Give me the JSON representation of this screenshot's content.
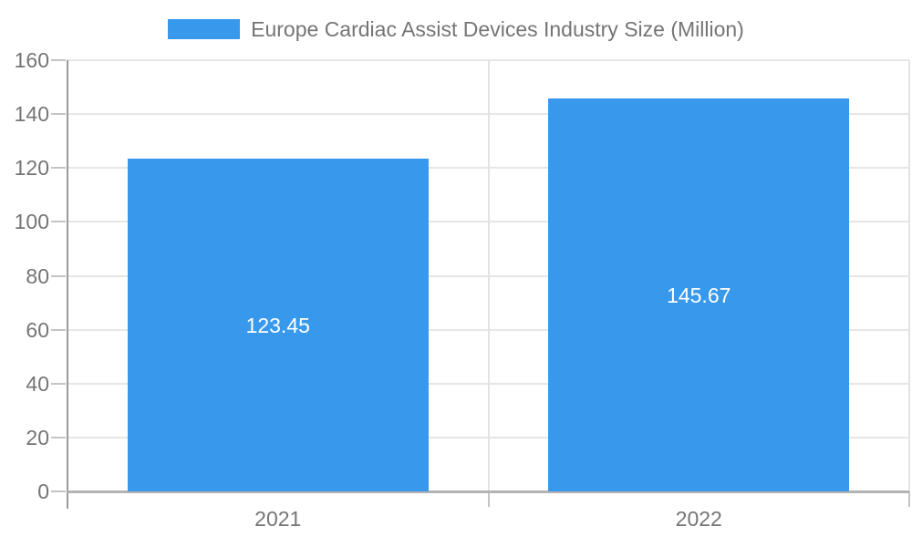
{
  "legend": {
    "label": "Europe Cardiac Assist Devices Industry Size (Million)"
  },
  "chart_data": {
    "type": "bar",
    "title": "Europe Cardiac Assist Devices Industry Size (Million)",
    "categories": [
      "2021",
      "2022"
    ],
    "values": [
      123.45,
      145.67
    ],
    "data_labels": [
      "123.45",
      "145.67"
    ],
    "xlabel": "",
    "ylabel": "",
    "ylim": [
      0,
      160
    ],
    "ytick_step": 20,
    "ytick_labels": [
      "0",
      "20",
      "40",
      "60",
      "80",
      "100",
      "120",
      "140",
      "160"
    ],
    "grid": true,
    "legend_position": "top",
    "colors": {
      "bar": "#3899ec",
      "value_label": "#ffffff",
      "axis_text": "#757575",
      "gridline": "#e6e6e6"
    }
  }
}
